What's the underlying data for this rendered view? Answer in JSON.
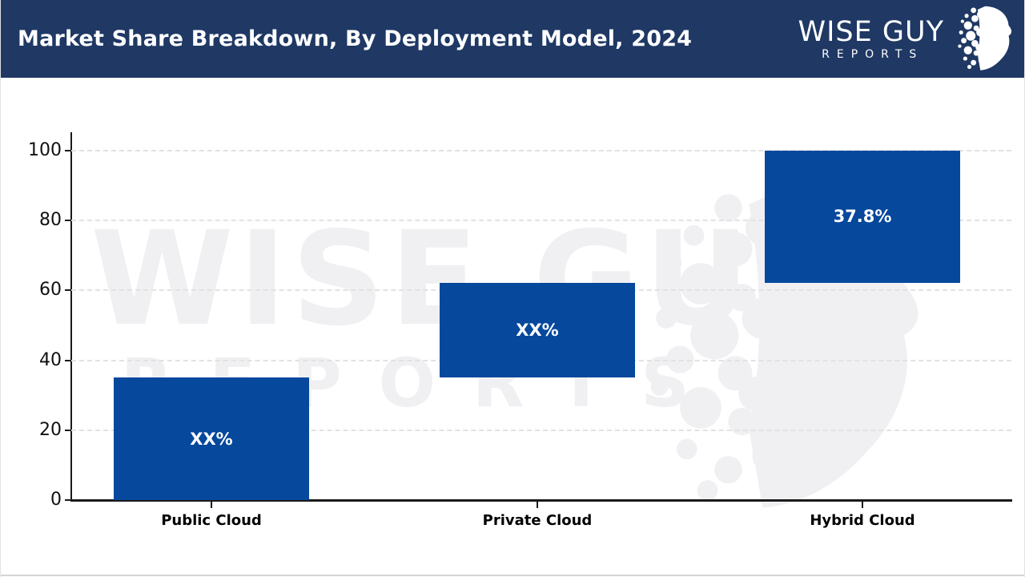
{
  "header": {
    "title": "Market Share Breakdown, By Deployment Model, 2024",
    "logo": {
      "name_line": "WISE GUY",
      "sub_line": "REPORTS"
    }
  },
  "watermark": {
    "name_line": "WISE GUY",
    "sub_line": "REPORTS"
  },
  "chart_data": {
    "type": "bar",
    "variant": "floating-segment-waterfall",
    "title": "Market Share Breakdown, By Deployment Model, 2024",
    "categories": [
      "Public Cloud",
      "Private Cloud",
      "Hybrid Cloud"
    ],
    "bars": [
      {
        "category": "Public Cloud",
        "label": "XX%",
        "start": 0,
        "end": 35
      },
      {
        "category": "Private Cloud",
        "label": "XX%",
        "start": 35,
        "end": 62.2
      },
      {
        "category": "Hybrid Cloud",
        "label": "37.8%",
        "start": 62.2,
        "end": 100
      }
    ],
    "yticks": [
      0,
      20,
      40,
      60,
      80,
      100
    ],
    "ylim": [
      0,
      105
    ],
    "grid": "horizontal-dashed",
    "legend": "none",
    "xlabel": "",
    "ylabel": ""
  },
  "colors": {
    "header_bg": "#1F3864",
    "bar_fill": "#05489C",
    "bar_label": "#FFFFFF",
    "grid_line": "#E2E2E2",
    "axis_line": "#1A1A1A",
    "tick_label": "#111111",
    "watermark": "#F0F0F3",
    "page_bg": "#FFFFFF"
  }
}
